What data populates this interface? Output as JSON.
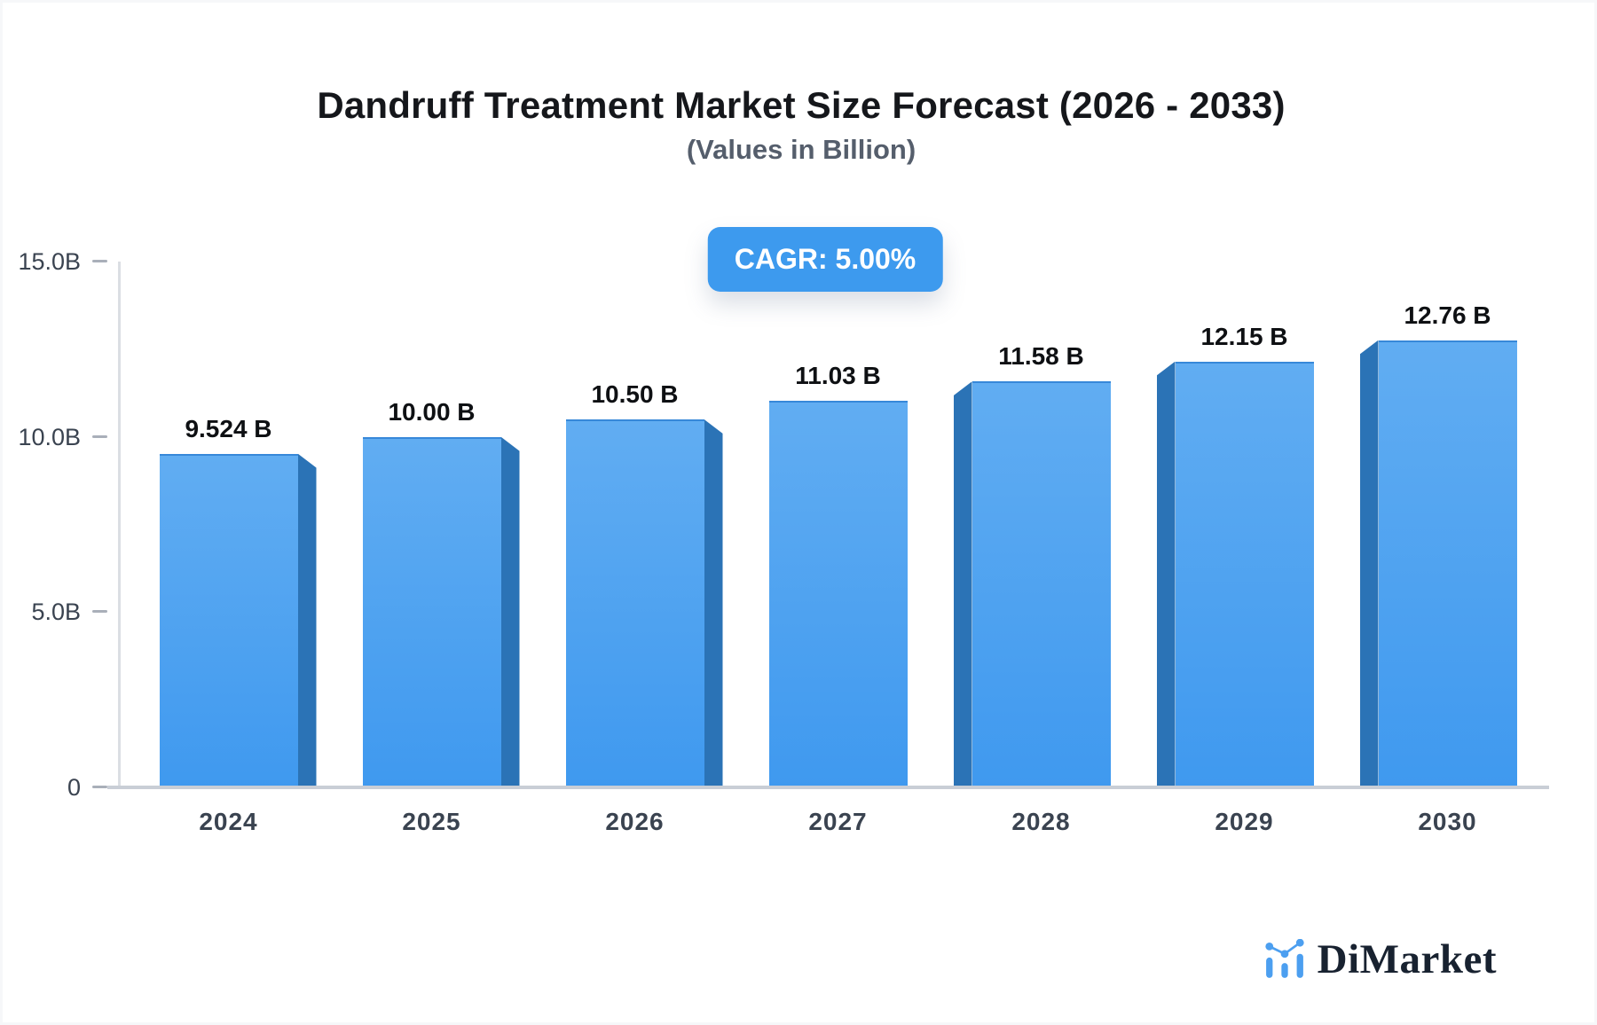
{
  "header": {
    "title": "Dandruff Treatment Market Size Forecast (2026 - 2033)",
    "subtitle": "(Values in Billion)",
    "badge": "CAGR: 5.00%"
  },
  "chart_data": {
    "type": "bar",
    "title": "Dandruff Treatment Market Size Forecast (2026 - 2033)",
    "subtitle": "(Values in Billion)",
    "categories": [
      "2024",
      "2025",
      "2026",
      "2027",
      "2028",
      "2029",
      "2030"
    ],
    "values": [
      9.524,
      10.0,
      10.5,
      11.03,
      11.58,
      12.15,
      12.76
    ],
    "bar_labels": [
      "9.524 B",
      "10.00 B",
      "10.50 B",
      "11.03 B",
      "11.58 B",
      "12.15 B",
      "12.76 B"
    ],
    "unit": "Billion",
    "ylim": [
      0,
      15
    ],
    "yticks": [
      {
        "value": 0,
        "label": "0"
      },
      {
        "value": 5,
        "label": "5.0B"
      },
      {
        "value": 10,
        "label": "10.0B"
      },
      {
        "value": 15,
        "label": "15.0B"
      }
    ],
    "grid": false,
    "legend": false,
    "annotation": "CAGR: 5.00%"
  },
  "colors": {
    "bar_face_top": "#61ADF2",
    "bar_face_bottom": "#3F99EF",
    "bar_side": "#2B73B6",
    "badge_bg": "#3D9AEE",
    "baseline": "#C9CED6",
    "axis_line": "#DBDEE3",
    "logo_blue": "#4C9FF0",
    "logo_navy": "#182230"
  },
  "branding": {
    "logo_text": "DiMarket",
    "logo_icon": "bar-line-chart-icon"
  }
}
